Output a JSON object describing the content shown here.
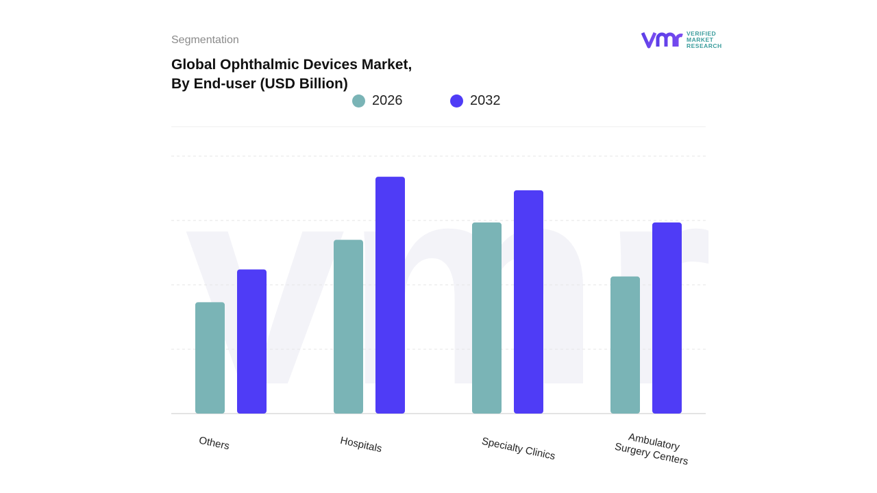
{
  "header": {
    "segment_label": "Segmentation",
    "title_line1": "Global Ophthalmic Devices Market,",
    "title_line2": "By End-user (USD Billion)"
  },
  "logo": {
    "mark": "vmr",
    "line1": "VERIFIED",
    "line2": "MARKET",
    "line3": "RESEARCH"
  },
  "colors": {
    "series_2026": "#7ab4b6",
    "series_2032": "#4f3cf6",
    "logo_purple": "#5b3ee8",
    "logo_teal": "#3a9c9c"
  },
  "chart_data": {
    "type": "bar",
    "title": "Global Ophthalmic Devices Market, By End-user (USD Billion)",
    "categories": [
      "Others",
      "Hospitals",
      "Specialty Clinics",
      "Ambulatory Surgery Centers"
    ],
    "category_lines": [
      [
        "Others"
      ],
      [
        "Hospitals"
      ],
      [
        "Specialty Clinics"
      ],
      [
        "Ambulatory",
        "Surgery Centers"
      ]
    ],
    "series": [
      {
        "name": "2026",
        "values": [
          1.73,
          2.7,
          2.97,
          2.13
        ]
      },
      {
        "name": "2032",
        "values": [
          2.24,
          3.68,
          3.47,
          2.97
        ]
      }
    ],
    "ylim": [
      0,
      4
    ],
    "grid": true,
    "legend": "top-center",
    "xlabel": "",
    "ylabel": ""
  }
}
